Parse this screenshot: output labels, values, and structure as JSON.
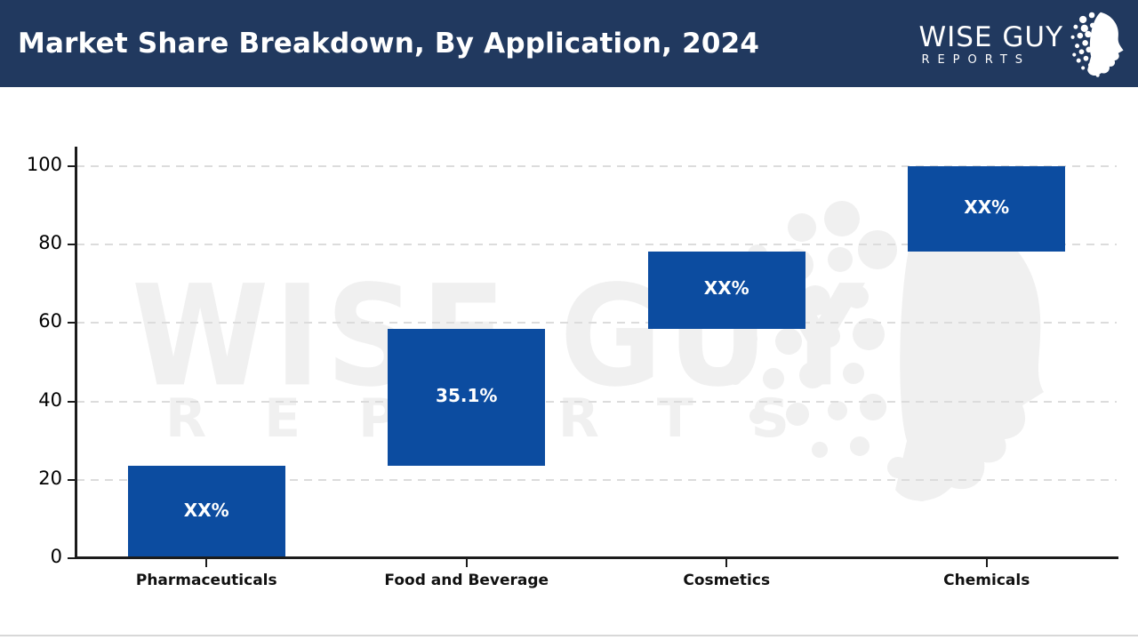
{
  "header": {
    "title": "Market Share Breakdown, By Application, 2024",
    "logo": {
      "line1": "WISE GUY",
      "line2": "REPORTS"
    }
  },
  "watermark": {
    "line1": "WISE GUY",
    "line2": "R E P O R T S"
  },
  "colors": {
    "header_bg": "#21395f",
    "bar_blue": "#0c4ca0",
    "grid_gray": "#dcdcdc",
    "axis_black": "#1c1c1c",
    "watermark_gray": "#f0f0f0",
    "bottom_line_gray": "#d8d8d8"
  },
  "chart_data": {
    "type": "bar",
    "subtype": "waterfall-floating-bars",
    "title": "Market Share Breakdown, By Application, 2024",
    "xlabel": "",
    "ylabel": "",
    "categories": [
      "Pharmaceuticals",
      "Food and Beverage",
      "Cosmetics",
      "Chemicals"
    ],
    "segments": [
      {
        "category": "Pharmaceuticals",
        "start": 0,
        "end": 23.5,
        "label": "XX%"
      },
      {
        "category": "Food and Beverage",
        "start": 23.5,
        "end": 58.6,
        "label": "35.1%"
      },
      {
        "category": "Cosmetics",
        "start": 58.6,
        "end": 78.3,
        "label": "XX%"
      },
      {
        "category": "Chemicals",
        "start": 78.3,
        "end": 100,
        "label": "XX%"
      }
    ],
    "y_ticks": [
      0,
      20,
      40,
      60,
      80,
      100
    ],
    "ylim": [
      0,
      105
    ],
    "grid": "horizontal dashed",
    "legend": "none"
  }
}
